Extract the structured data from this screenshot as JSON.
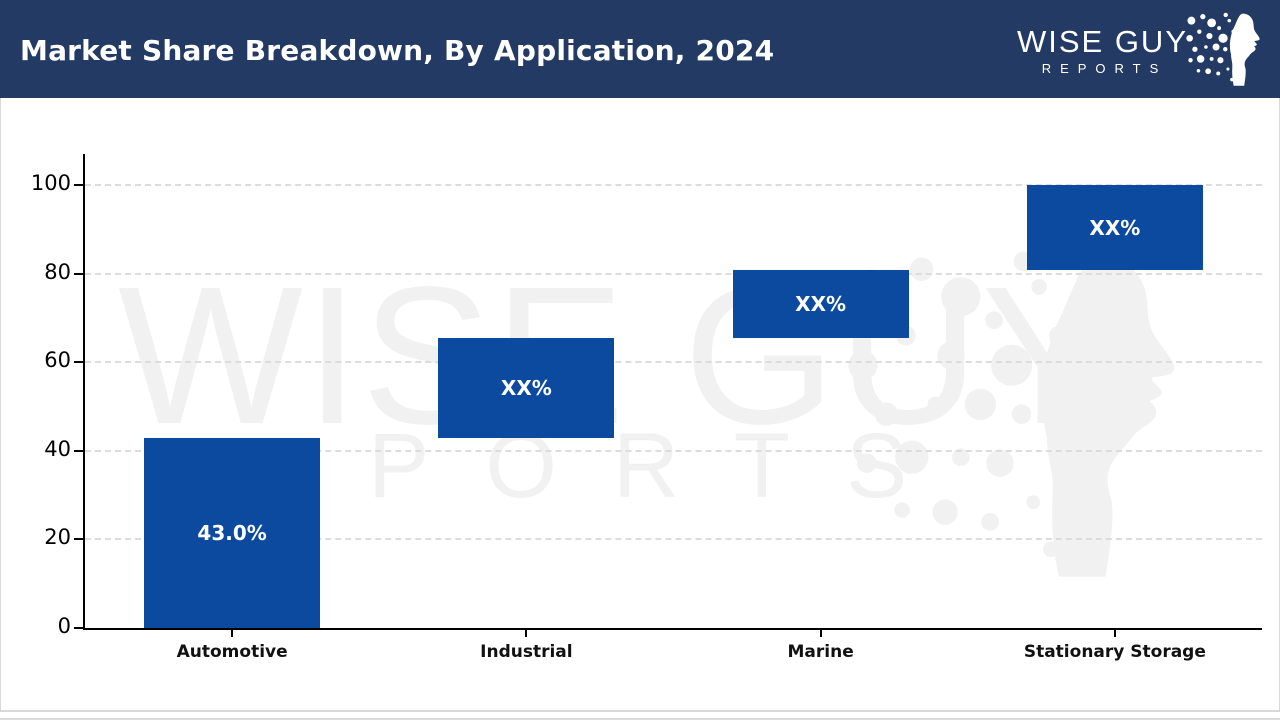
{
  "header": {
    "title": "Market Share Breakdown, By Application, 2024",
    "colors": {
      "background": "#223A64",
      "title_text": "#FFFFFF"
    },
    "logo": {
      "line1": "WISE GUY",
      "line2": "REPORTS"
    }
  },
  "watermark": {
    "line1": "WISE GUY",
    "line2": "PORTS"
  },
  "chart_data": {
    "type": "bar",
    "subtype": "waterfall",
    "title": "Market Share Breakdown, By Application, 2024",
    "categories": [
      "Automotive",
      "Industrial",
      "Marine",
      "Stationary Storage"
    ],
    "segments": [
      {
        "category": "Automotive",
        "start": 0,
        "end": 43.0,
        "label": "43.0%"
      },
      {
        "category": "Industrial",
        "start": 43.0,
        "end": 65.5,
        "label": "XX%"
      },
      {
        "category": "Marine",
        "start": 65.5,
        "end": 80.8,
        "label": "XX%"
      },
      {
        "category": "Stationary Storage",
        "start": 80.8,
        "end": 100.0,
        "label": "XX%"
      }
    ],
    "yticks": [
      0,
      20,
      40,
      60,
      80,
      100
    ],
    "ylim": [
      0,
      105.6
    ],
    "xlabel": "",
    "ylabel": "",
    "grid": "horizontal-dashed",
    "legend": "none",
    "bar_color": "#0B4A9E",
    "bar_label_color": "#FFFFFF",
    "axis_color": "#000000",
    "gridline_color": "#DCDCDC",
    "watermark_color": "#F1F1F2"
  }
}
